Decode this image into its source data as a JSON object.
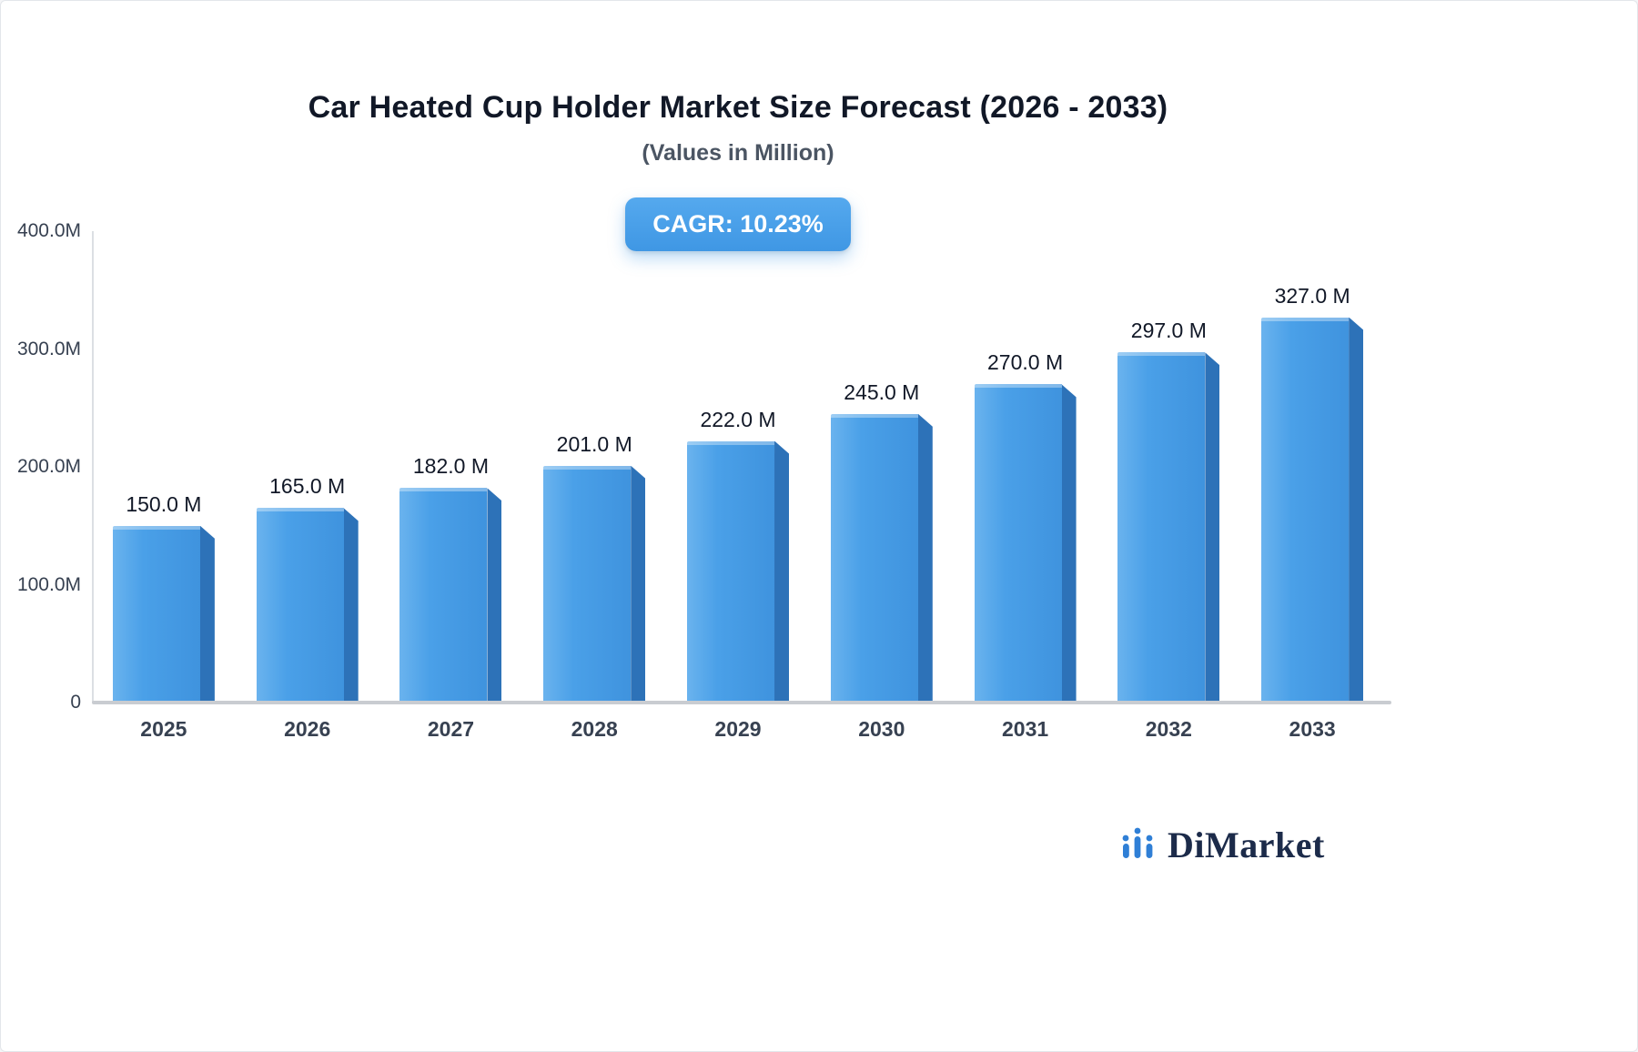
{
  "header": {
    "title": "Car Heated Cup Holder Market Size Forecast (2026 - 2033)",
    "subtitle": "(Values in Million)",
    "cagr_badge": "CAGR: 10.23%"
  },
  "logo": {
    "text": "DiMarket",
    "icon": "bar-chart-logo-icon",
    "icon_color": "#2f7fd6",
    "text_color": "#1c2b4a"
  },
  "colors": {
    "bar_front": "#4aa0e8",
    "bar_side": "#2d72b8",
    "badge": "#469ce6",
    "axis_line": "#dcdfe3",
    "baseline": "#c9ccd1",
    "label_text": "#374151"
  },
  "chart_data": {
    "type": "bar",
    "title": "Car Heated Cup Holder Market Size Forecast (2026 - 2033)",
    "subtitle": "(Values in Million)",
    "categories": [
      "2025",
      "2026",
      "2027",
      "2028",
      "2029",
      "2030",
      "2031",
      "2032",
      "2033"
    ],
    "values": [
      150,
      165,
      182,
      201,
      222,
      245,
      270,
      297,
      327
    ],
    "value_labels": [
      "150.0 M",
      "165.0 M",
      "182.0 M",
      "201.0 M",
      "222.0 M",
      "245.0 M",
      "270.0 M",
      "297.0 M",
      "327.0 M"
    ],
    "ytick_labels": [
      "400.0M",
      "300.0M",
      "200.0M",
      "100.0M",
      "0"
    ],
    "ytick_values": [
      400,
      300,
      200,
      100,
      0
    ],
    "ylim": [
      0,
      400
    ],
    "xlabel": "",
    "ylabel": "",
    "grid": false,
    "legend": false,
    "annotation": "CAGR: 10.23%"
  }
}
